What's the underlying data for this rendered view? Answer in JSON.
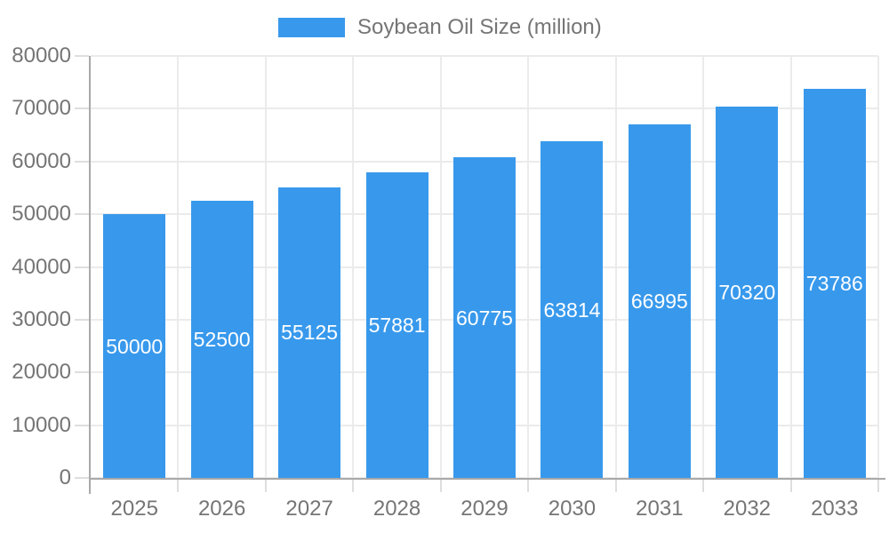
{
  "chart_data": {
    "type": "bar",
    "title": "",
    "legend": "Soybean Oil Size (million)",
    "legend_position": "top-center",
    "categories": [
      "2025",
      "2026",
      "2027",
      "2028",
      "2029",
      "2030",
      "2031",
      "2032",
      "2033"
    ],
    "values": [
      50000,
      52500,
      55125,
      57881,
      60775,
      63814,
      66995,
      70320,
      73786
    ],
    "value_labels": [
      "50000",
      "52500",
      "55125",
      "57881",
      "60775",
      "63814",
      "66995",
      "70320",
      "73786"
    ],
    "ylim": [
      0,
      80000
    ],
    "yticks": [
      "0",
      "10000",
      "20000",
      "30000",
      "40000",
      "50000",
      "60000",
      "70000",
      "80000"
    ],
    "xlabel": "",
    "ylabel": "",
    "grid": "on",
    "colors": {
      "bar": "#3899EC",
      "axis_label": "#757575",
      "value_label": "#FFFFFF",
      "gridline": "#EBEBEB",
      "axis_line": "#A9A9A9",
      "tick": "#DEDEDE",
      "background": "#FFFFFF"
    }
  }
}
